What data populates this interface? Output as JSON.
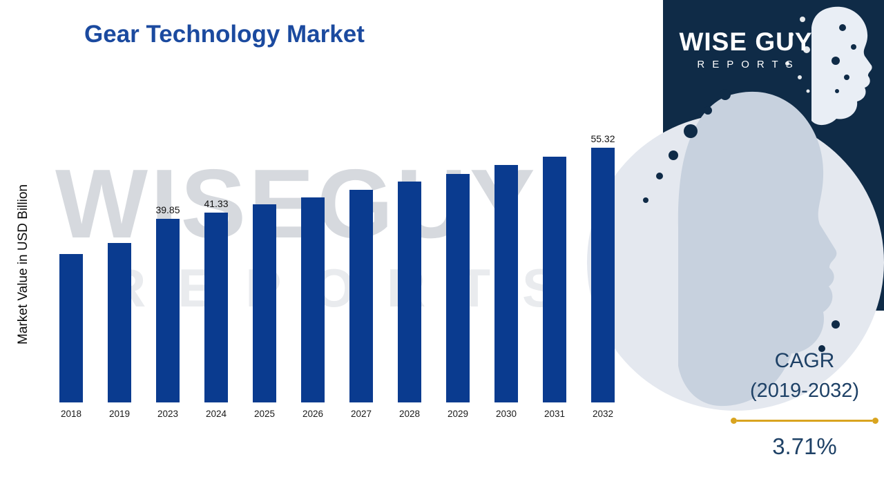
{
  "header": {
    "title": "Gear Technology Market"
  },
  "logo": {
    "name_line": "WISE GUY",
    "reports_line": "REPORTS"
  },
  "watermark": {
    "line1": "WISEGUY",
    "line2": "REPORTS"
  },
  "cagr": {
    "label": "CAGR",
    "range": "(2019-2032)",
    "value": "3.71%"
  },
  "chart_data": {
    "type": "bar",
    "title": "Gear Technology Market",
    "xlabel": "",
    "ylabel": "Market Value in USD Billion",
    "categories": [
      "2018",
      "2019",
      "2023",
      "2024",
      "2025",
      "2026",
      "2027",
      "2028",
      "2029",
      "2030",
      "2031",
      "2032"
    ],
    "values": [
      32.3,
      34.6,
      39.85,
      41.33,
      43.0,
      44.5,
      46.2,
      48.0,
      49.6,
      51.6,
      53.4,
      55.32
    ],
    "data_labels": [
      "",
      "",
      "39.85",
      "41.33",
      "",
      "",
      "",
      "",
      "",
      "",
      "",
      "55.32"
    ],
    "ylim": [
      0,
      60
    ],
    "grid": false,
    "legend": "none",
    "bar_color": "#0a3b8f"
  },
  "colors": {
    "title_blue": "#1b4a9f",
    "bar_blue": "#0a3b8f",
    "panel_navy": "#0f2b47",
    "accent_gold": "#d9a41f",
    "cagr_navy": "#1e4166",
    "circle_gray": "#e4e8ef",
    "face_gray": "#c7d1de"
  }
}
